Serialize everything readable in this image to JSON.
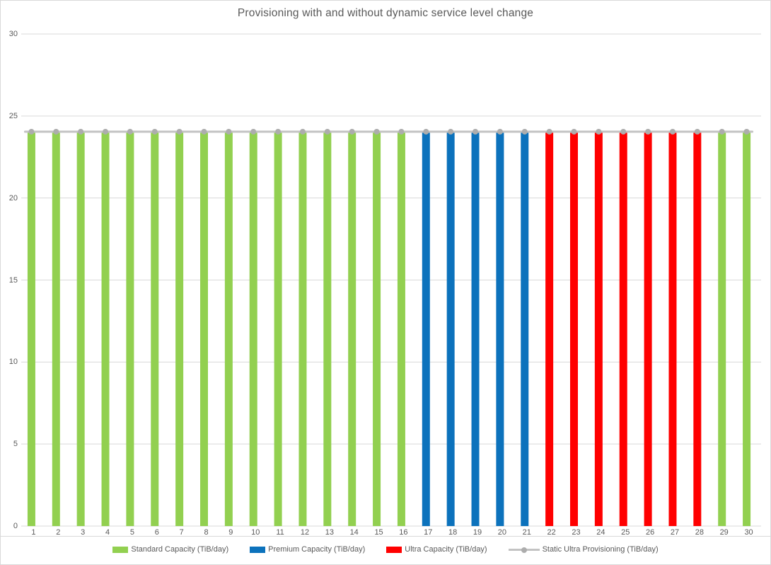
{
  "title": "Provisioning with and without dynamic service level change",
  "colors": {
    "standard": "#92D050",
    "premium": "#0C72BC",
    "ultra": "#FF0000",
    "static_line": "#C3C3C3",
    "static_marker": "#ADADAD",
    "gridline": "#D9D9D9",
    "axis_text": "#595959",
    "title_text": "#595959",
    "border": "#D9D9D9"
  },
  "chart_data": {
    "type": "bar",
    "title": "Provisioning with and without dynamic service level change",
    "categories": [
      1,
      2,
      3,
      4,
      5,
      6,
      7,
      8,
      9,
      10,
      11,
      12,
      13,
      14,
      15,
      16,
      17,
      18,
      19,
      20,
      21,
      22,
      23,
      24,
      25,
      26,
      27,
      28,
      29,
      30
    ],
    "xlabel": "",
    "ylabel": "",
    "ylim": [
      0,
      30
    ],
    "yticks": [
      0,
      5,
      10,
      15,
      20,
      25,
      30
    ],
    "grid": true,
    "legend_position": "bottom",
    "series": [
      {
        "name": "Standard Capacity (TiB/day)",
        "kind": "bar",
        "color_key": "standard",
        "values": [
          24,
          24,
          24,
          24,
          24,
          24,
          24,
          24,
          24,
          24,
          24,
          24,
          24,
          24,
          24,
          24,
          null,
          null,
          null,
          null,
          null,
          null,
          null,
          null,
          null,
          null,
          null,
          null,
          24,
          24
        ]
      },
      {
        "name": "Premium Capacity (TiB/day)",
        "kind": "bar",
        "color_key": "premium",
        "values": [
          null,
          null,
          null,
          null,
          null,
          null,
          null,
          null,
          null,
          null,
          null,
          null,
          null,
          null,
          null,
          null,
          24,
          24,
          24,
          24,
          24,
          null,
          null,
          null,
          null,
          null,
          null,
          null,
          null,
          null
        ]
      },
      {
        "name": "Ultra Capacity (TiB/day)",
        "kind": "bar",
        "color_key": "ultra",
        "values": [
          null,
          null,
          null,
          null,
          null,
          null,
          null,
          null,
          null,
          null,
          null,
          null,
          null,
          null,
          null,
          null,
          null,
          null,
          null,
          null,
          null,
          24,
          24,
          24,
          24,
          24,
          24,
          24,
          null,
          null
        ]
      },
      {
        "name": "Static Ultra Provisioning (TiB/day)",
        "kind": "line",
        "color_key": "static_line",
        "marker_color_key": "static_marker",
        "values": [
          24,
          24,
          24,
          24,
          24,
          24,
          24,
          24,
          24,
          24,
          24,
          24,
          24,
          24,
          24,
          24,
          24,
          24,
          24,
          24,
          24,
          24,
          24,
          24,
          24,
          24,
          24,
          24,
          24,
          24
        ]
      }
    ]
  }
}
